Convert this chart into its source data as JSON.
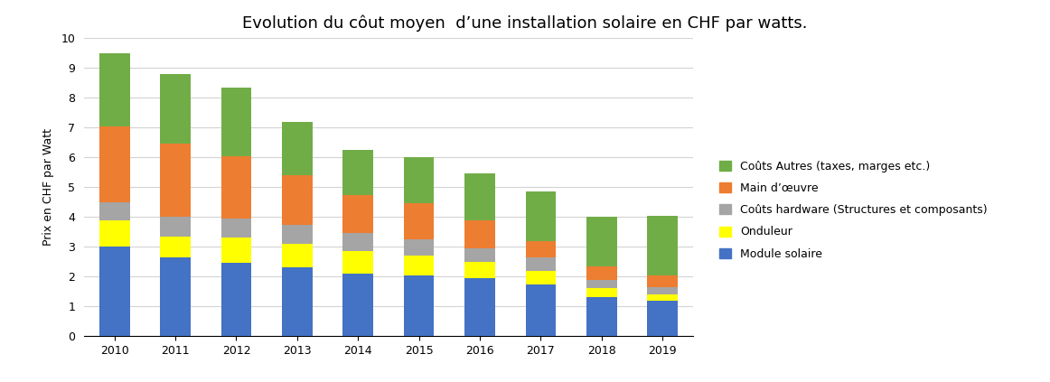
{
  "title": "Evolution du côut moyen  d’une installation solaire en CHF par watts.",
  "ylabel": "Prix en CHF par Watt",
  "years": [
    "2010",
    "2011",
    "2012",
    "2013",
    "2014",
    "2015",
    "2016",
    "2017",
    "2018",
    "2019"
  ],
  "series": {
    "Module solaire": [
      3.0,
      2.65,
      2.45,
      2.3,
      2.1,
      2.05,
      1.95,
      1.75,
      1.3,
      1.2
    ],
    "Onduleur": [
      0.9,
      0.7,
      0.85,
      0.8,
      0.75,
      0.65,
      0.55,
      0.45,
      0.3,
      0.2
    ],
    "Coûts hardware (Structures et composants)": [
      0.6,
      0.65,
      0.65,
      0.65,
      0.6,
      0.55,
      0.45,
      0.45,
      0.3,
      0.25
    ],
    "Main d’œuvre": [
      2.55,
      2.45,
      2.1,
      1.65,
      1.3,
      1.2,
      0.95,
      0.55,
      0.45,
      0.4
    ],
    "Coûts Autres (taxes, marges etc.)": [
      2.45,
      2.35,
      2.3,
      1.8,
      1.5,
      1.55,
      1.55,
      1.65,
      1.65,
      2.0
    ]
  },
  "colors": {
    "Module solaire": "#4472C4",
    "Onduleur": "#FFFF00",
    "Coûts hardware (Structures et composants)": "#A5A5A5",
    "Main d’œuvre": "#ED7D31",
    "Coûts Autres (taxes, marges etc.)": "#70AD47"
  },
  "ylim": [
    0,
    10
  ],
  "yticks": [
    0,
    1,
    2,
    3,
    4,
    5,
    6,
    7,
    8,
    9,
    10
  ],
  "legend_order": [
    "Coûts Autres (taxes, marges etc.)",
    "Main d’œuvre",
    "Coûts hardware (Structures et composants)",
    "Onduleur",
    "Module solaire"
  ],
  "title_fontsize": 13,
  "axis_label_fontsize": 9,
  "tick_fontsize": 9,
  "legend_fontsize": 9,
  "background_color": "#ffffff",
  "grid_color": "#d3d3d3",
  "bar_width": 0.5
}
